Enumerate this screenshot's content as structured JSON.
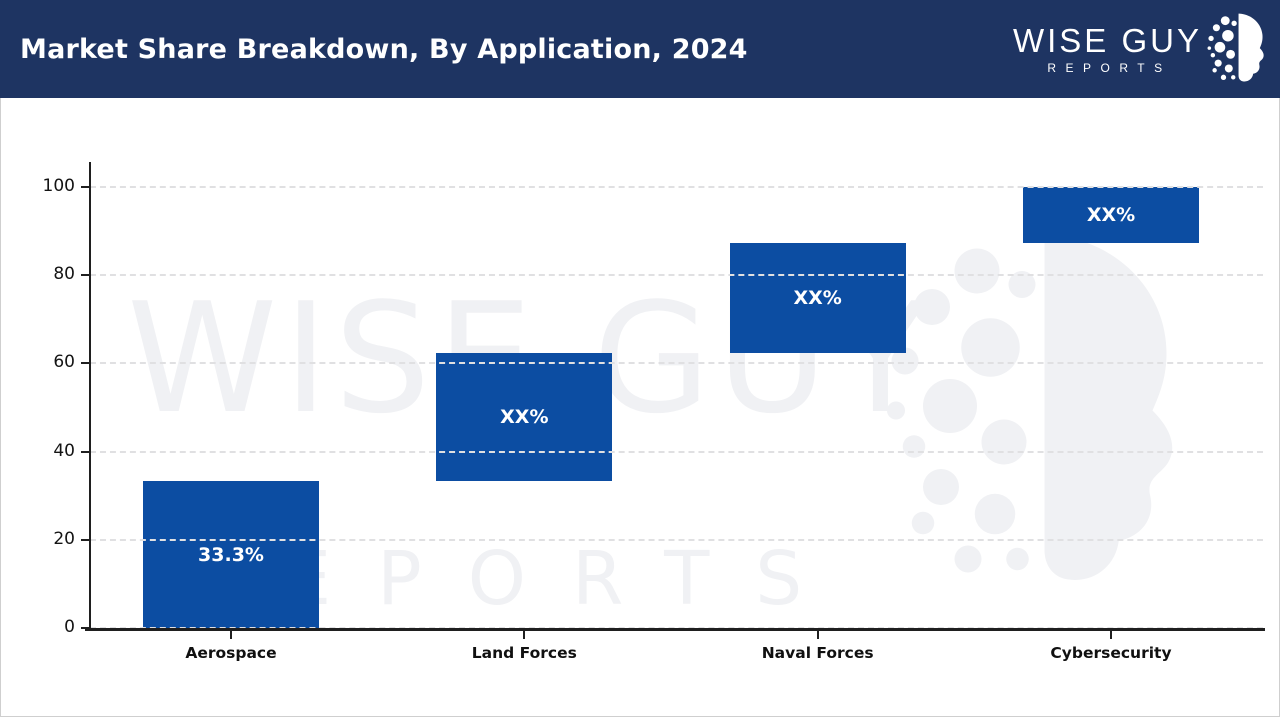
{
  "header": {
    "title": "Market Share Breakdown, By Application, 2024"
  },
  "logo": {
    "brand": "WISE GUY",
    "sub": "REPORTS",
    "head_icon": "dotted-head-profile-icon"
  },
  "watermark": {
    "line1": "WISE GUY",
    "line2": "REPORTS",
    "head_icon": "dotted-head-profile-icon"
  },
  "colors": {
    "header_bg": "#1e3462",
    "bar": "#0c4da2",
    "bar_label": "#ffffff",
    "grid": "#e0e0e2",
    "axis": "#1f1f1f",
    "watermark": "#f0f1f4",
    "card_border": "#cfcfcf"
  },
  "chart_data": {
    "type": "bar",
    "subtype": "waterfall-floating-bars",
    "title": "Market Share Breakdown, By Application, 2024",
    "categories": [
      "Aerospace",
      "Land Forces",
      "Naval Forces",
      "Cybersecurity"
    ],
    "segments": [
      {
        "category": "Aerospace",
        "start": 0,
        "end": 33.3,
        "label": "33.3%"
      },
      {
        "category": "Land Forces",
        "start": 33.3,
        "end": 62.4,
        "label": "XX%"
      },
      {
        "category": "Naval Forces",
        "start": 62.4,
        "end": 87.3,
        "label": "XX%"
      },
      {
        "category": "Cybersecurity",
        "start": 87.3,
        "end": 100,
        "label": "XX%"
      }
    ],
    "xlabel": "",
    "ylabel": "",
    "ylim": [
      0,
      100
    ],
    "yticks": [
      0,
      20,
      40,
      60,
      80,
      100
    ],
    "grid": "horizontal dashed, drawn above bars",
    "legend": "none"
  }
}
